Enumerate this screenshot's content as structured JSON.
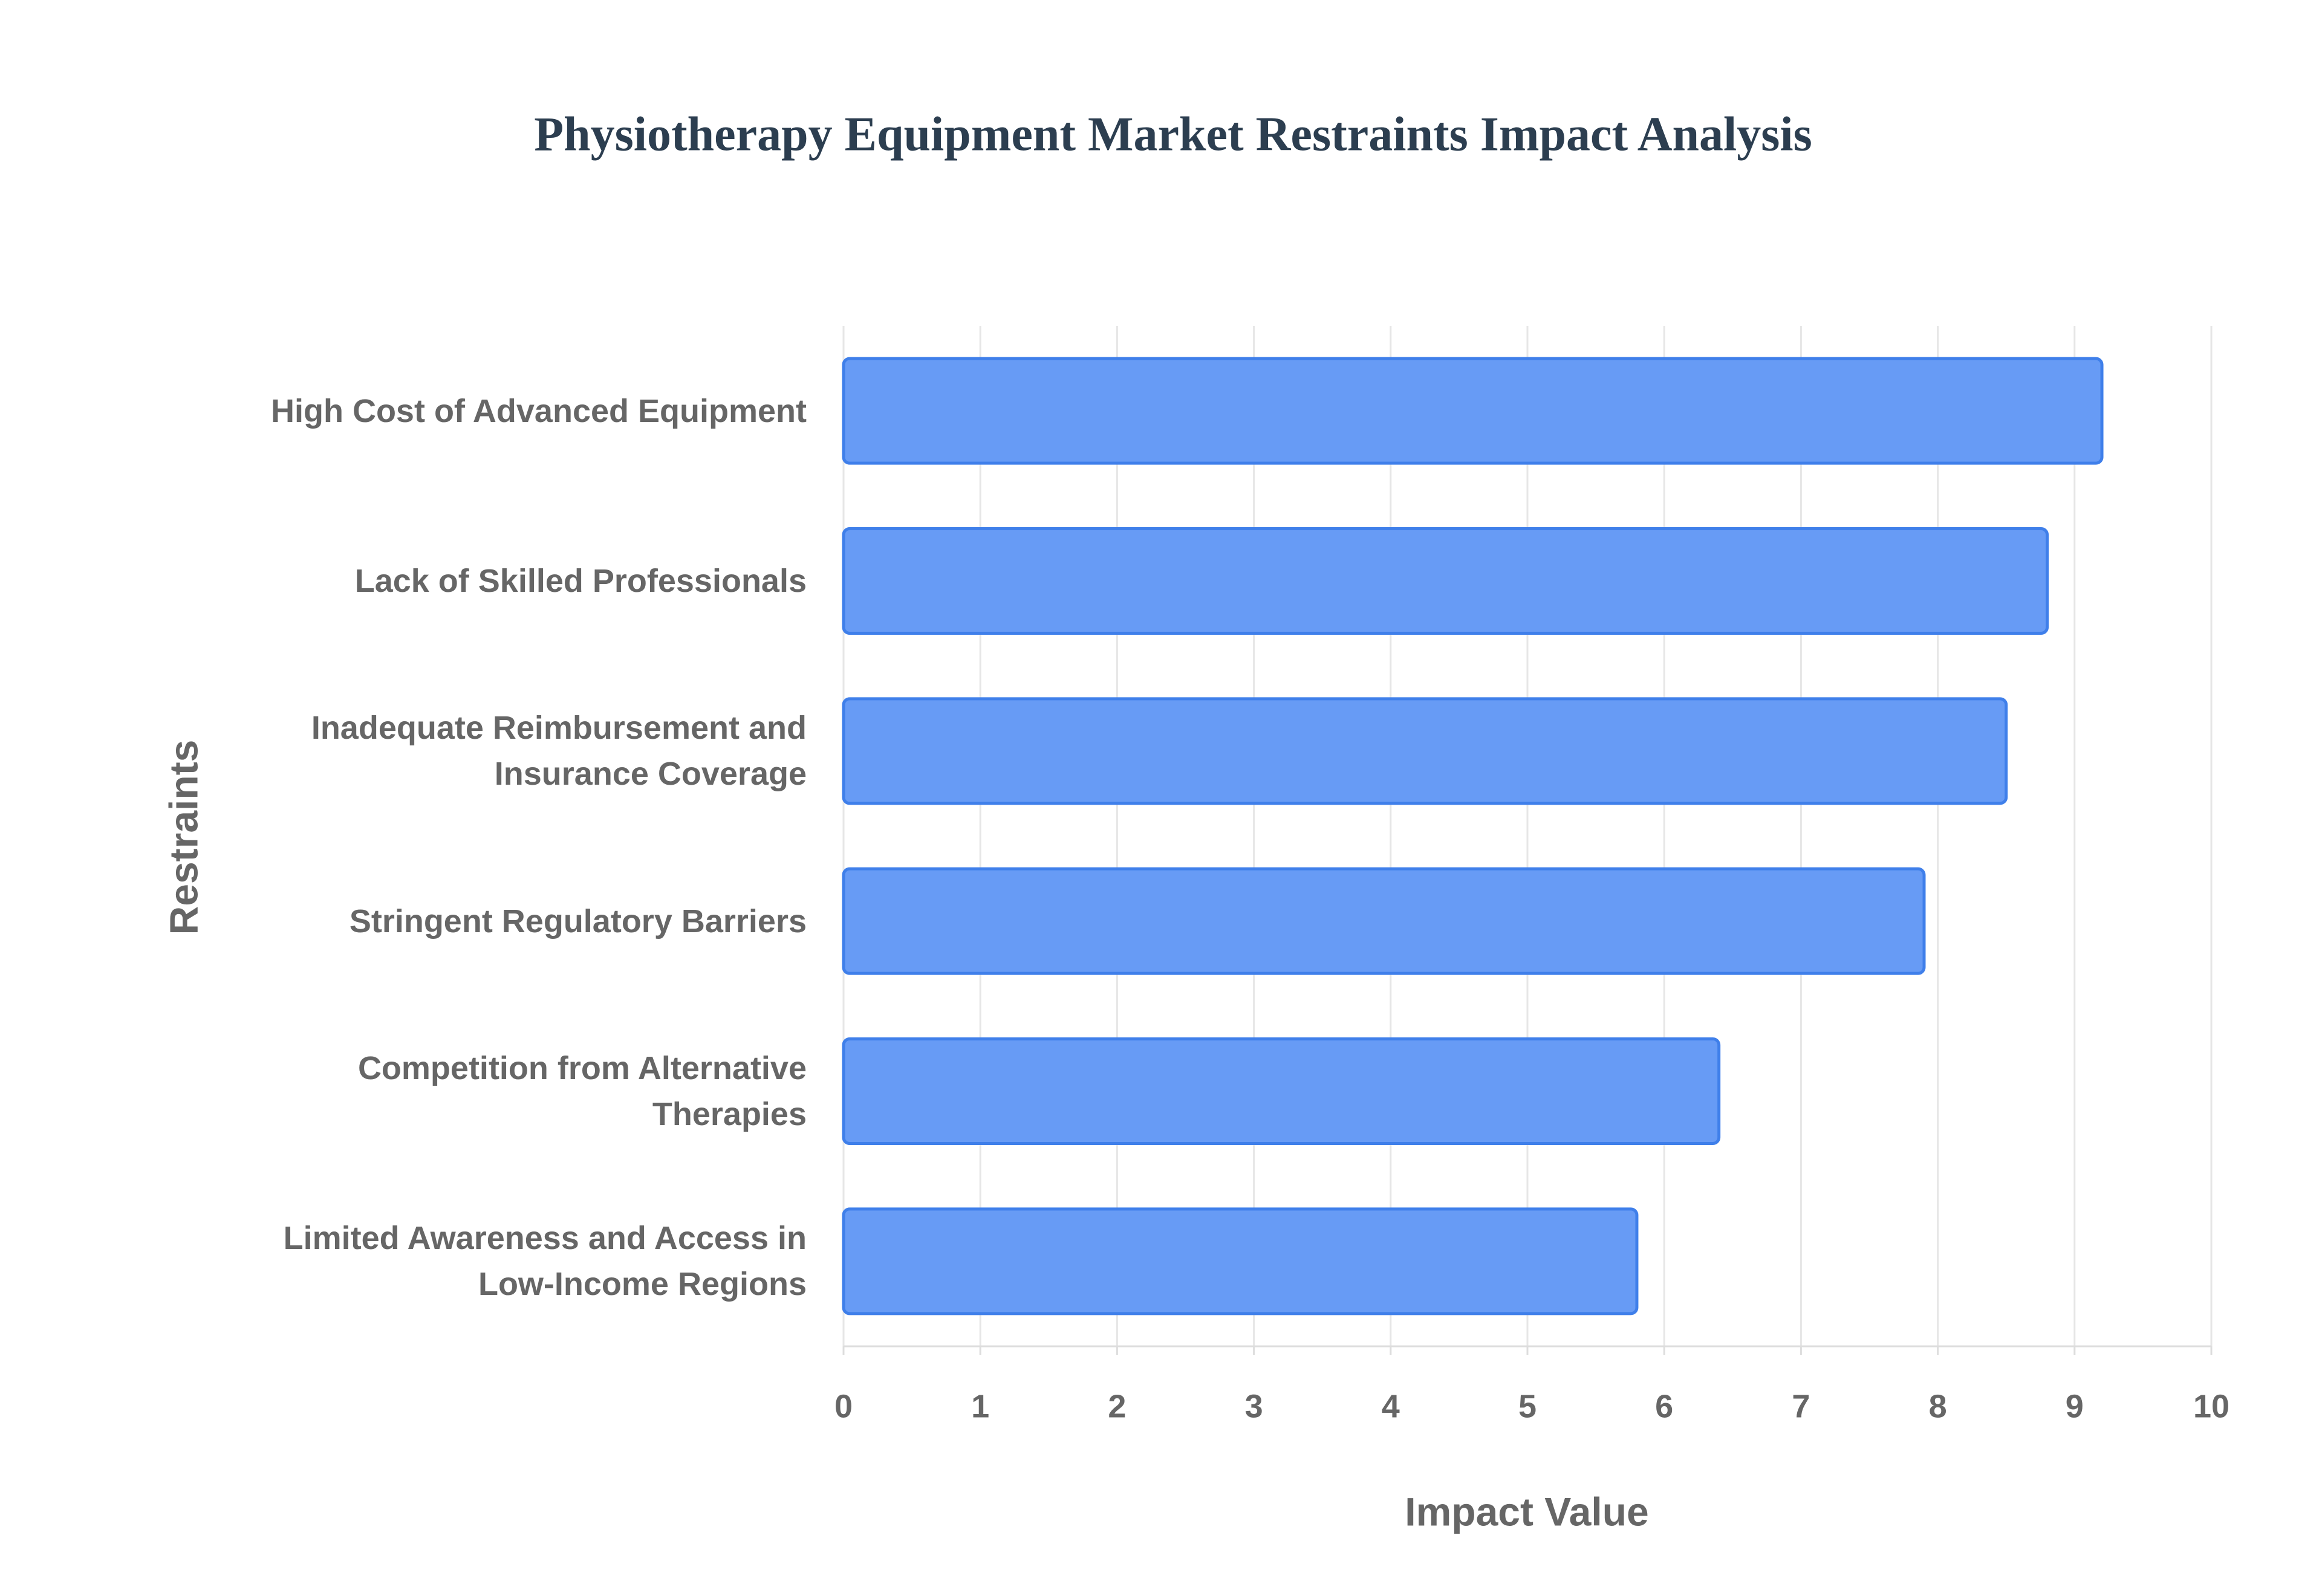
{
  "chart_data": {
    "type": "bar",
    "orientation": "horizontal",
    "title": "Physiotherapy Equipment Market Restraints Impact Analysis",
    "x_label": "Impact Value",
    "y_label": "Restraints",
    "categories": [
      "High Cost of Advanced Equipment",
      "Lack of Skilled Professionals",
      "Inadequate Reimbursement and Insurance Coverage",
      "Stringent Regulatory Barriers",
      "Competition from Alternative Therapies",
      "Limited Awareness and Access in Low-Income Regions"
    ],
    "values": [
      9.2,
      8.8,
      8.5,
      7.9,
      6.4,
      5.8
    ],
    "color": "#6499f5",
    "edge_color": "#3f7fea",
    "xlim": [
      0,
      10
    ],
    "xticks": [
      0,
      1,
      2,
      3,
      4,
      5,
      6,
      7,
      8,
      9,
      10
    ],
    "grid": true
  }
}
